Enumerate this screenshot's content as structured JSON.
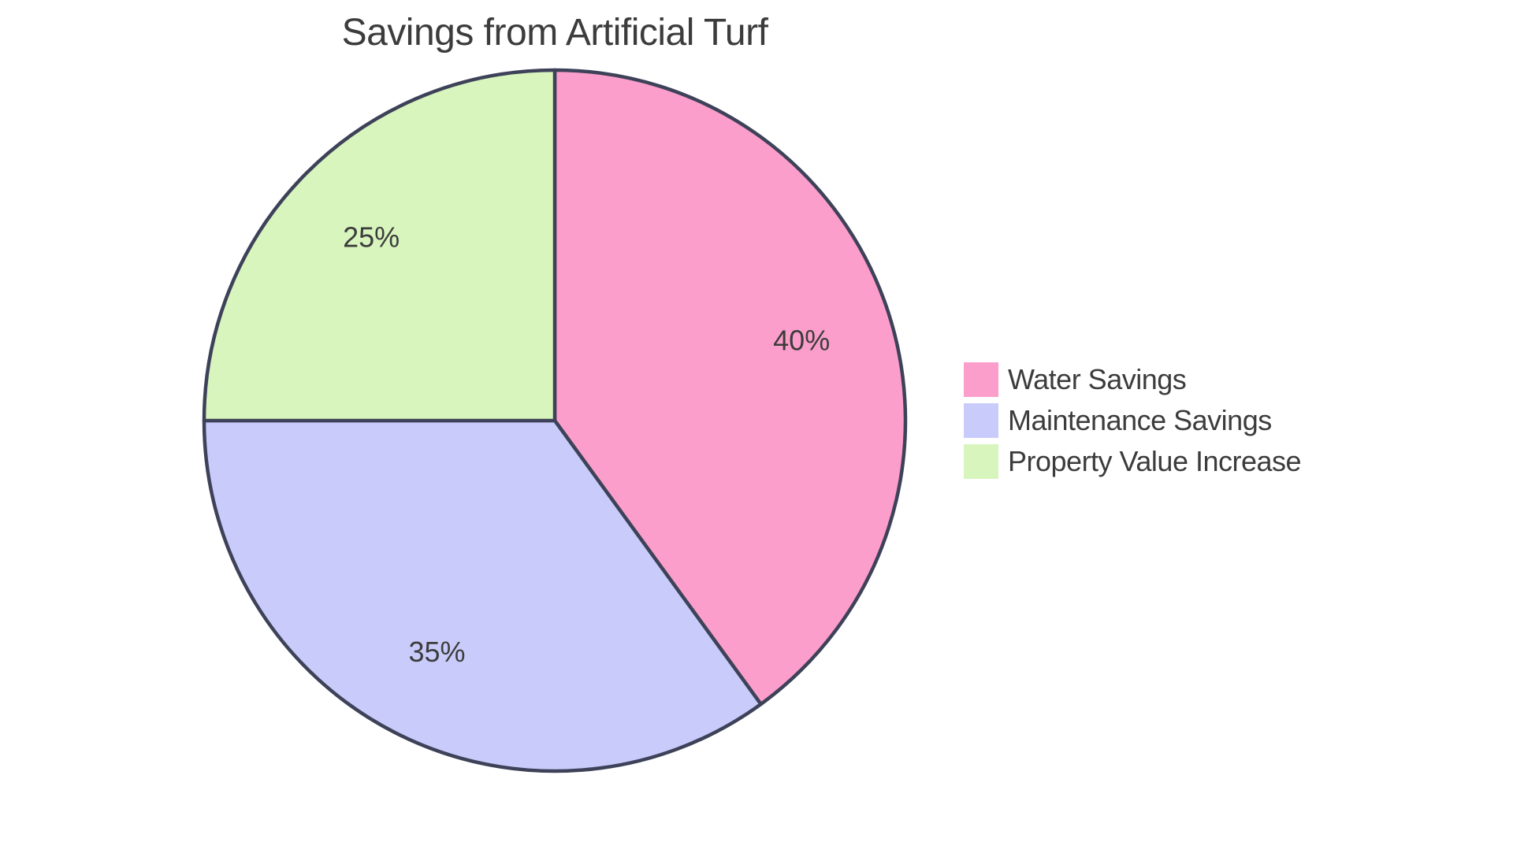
{
  "chart_data": {
    "type": "pie",
    "title": "Savings from Artificial Turf",
    "labels": [
      "Water Savings",
      "Maintenance Savings",
      "Property Value Increase"
    ],
    "values": [
      40,
      35,
      25
    ],
    "percent_labels": [
      "40%",
      "35%",
      "25%"
    ],
    "colors": [
      "#FC9ECB",
      "#C9CCFA",
      "#D8F5BE"
    ],
    "slice_border_color": "#3E4259",
    "text_color": "#3C3C3C",
    "background_color": "#FFFFFF",
    "start_angle": "12-o-clock",
    "direction": "clockwise",
    "legend_position": "right",
    "label_radius_fraction": 0.74
  }
}
